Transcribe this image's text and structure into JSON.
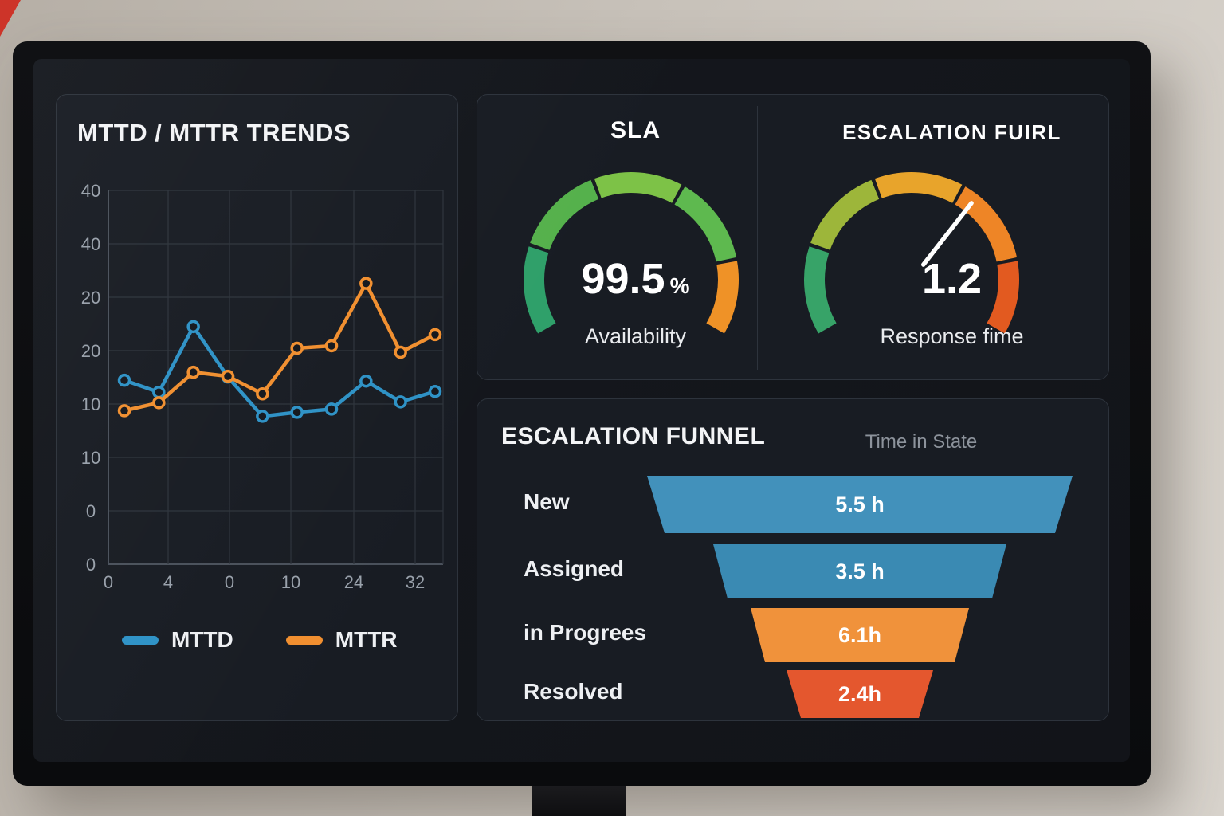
{
  "theme": {
    "wall": "#c8c2ba",
    "screen_bg": "#14171d",
    "panel_bg": "#181c23",
    "panel_border": "#2d333c",
    "text": "#f3f4f6",
    "muted_text": "#99a1ab",
    "grid": "#2e343c"
  },
  "chart_data": [
    {
      "type": "line",
      "title": "MTTD / MTTR TRENDS",
      "x": [
        1,
        2,
        3,
        4,
        5,
        6,
        7,
        8,
        9,
        10
      ],
      "series": [
        {
          "name": "MTTD",
          "color": "#2e92c6",
          "values": [
            16.3,
            14.8,
            23.0,
            16.7,
            11.8,
            12.3,
            12.7,
            16.2,
            13.6,
            14.9
          ]
        },
        {
          "name": "MTTR",
          "color": "#f18f2f",
          "values": [
            12.5,
            13.5,
            17.3,
            16.8,
            14.6,
            20.3,
            20.6,
            28.4,
            19.8,
            22.0
          ]
        }
      ],
      "ylim": [
        0,
        40
      ],
      "ytick_labels": [
        "40",
        "40",
        "20",
        "20",
        "10",
        "10",
        "0",
        "0"
      ],
      "xtick_labels": [
        "0",
        "4",
        "0",
        "10",
        "24",
        "32"
      ],
      "grid": true,
      "legend_position": "bottom"
    },
    {
      "type": "gauge",
      "title": "SLA",
      "value": "99.5",
      "unit": "%",
      "label": "Availability",
      "arc_degrees": [
        -120,
        120
      ],
      "segments": [
        {
          "start": -120,
          "end": -72,
          "color": "#2fa06a"
        },
        {
          "start": -70,
          "end": -22,
          "color": "#55b14c"
        },
        {
          "start": -20,
          "end": 28,
          "color": "#7dc247"
        },
        {
          "start": 30,
          "end": 78,
          "color": "#5eb94f"
        },
        {
          "start": 80,
          "end": 120,
          "color": "#ef9227"
        }
      ]
    },
    {
      "type": "gauge",
      "title": "ESCALATION FUIRL",
      "value": "1.2",
      "label": "Response fime",
      "arc_degrees": [
        -120,
        120
      ],
      "needle_angle": 38,
      "segments": [
        {
          "start": -120,
          "end": -72,
          "color": "#37a368"
        },
        {
          "start": -70,
          "end": -22,
          "color": "#9db63a"
        },
        {
          "start": -20,
          "end": 28,
          "color": "#e8a42b"
        },
        {
          "start": 30,
          "end": 78,
          "color": "#ee8526"
        },
        {
          "start": 80,
          "end": 120,
          "color": "#e25a20"
        }
      ]
    },
    {
      "type": "funnel",
      "title": "ESCALATION FUNNEL",
      "subtitle": "Time in State",
      "stages": [
        {
          "label": "New",
          "value": "5.5 h",
          "color": "#4291bb"
        },
        {
          "label": "Assigned",
          "value": "3.5 h",
          "color": "#3a8ab3"
        },
        {
          "label": "in Progrees",
          "value": "6.1h",
          "color": "#f0923b"
        },
        {
          "label": "Resolved",
          "value": "2.4h",
          "color": "#e4572e"
        }
      ]
    }
  ]
}
